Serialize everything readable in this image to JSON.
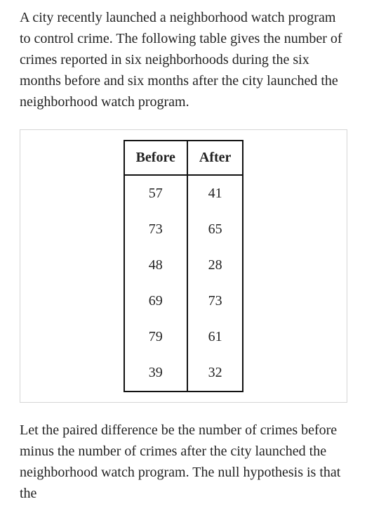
{
  "intro": "A city recently launched a neighborhood watch program to control crime. The following table gives the number of crimes reported in six neighborhoods during the six months before and six months after the city launched the neighborhood watch program.",
  "table": {
    "columns": [
      "Before",
      "After"
    ],
    "rows": [
      [
        57,
        41
      ],
      [
        73,
        65
      ],
      [
        48,
        28
      ],
      [
        69,
        73
      ],
      [
        79,
        61
      ],
      [
        39,
        32
      ]
    ]
  },
  "outro": "Let the paired difference be the number of crimes before minus the number of crimes after the city launched the neighborhood watch program. The null hypothesis is that the",
  "styles": {
    "font_family": "Georgia, 'Times New Roman', serif",
    "text_color": "#222222",
    "background_color": "#ffffff",
    "table_border_color": "#111111",
    "outer_border_color": "#d5d5d5",
    "body_fontsize": 20,
    "header_fontweight": "bold"
  }
}
